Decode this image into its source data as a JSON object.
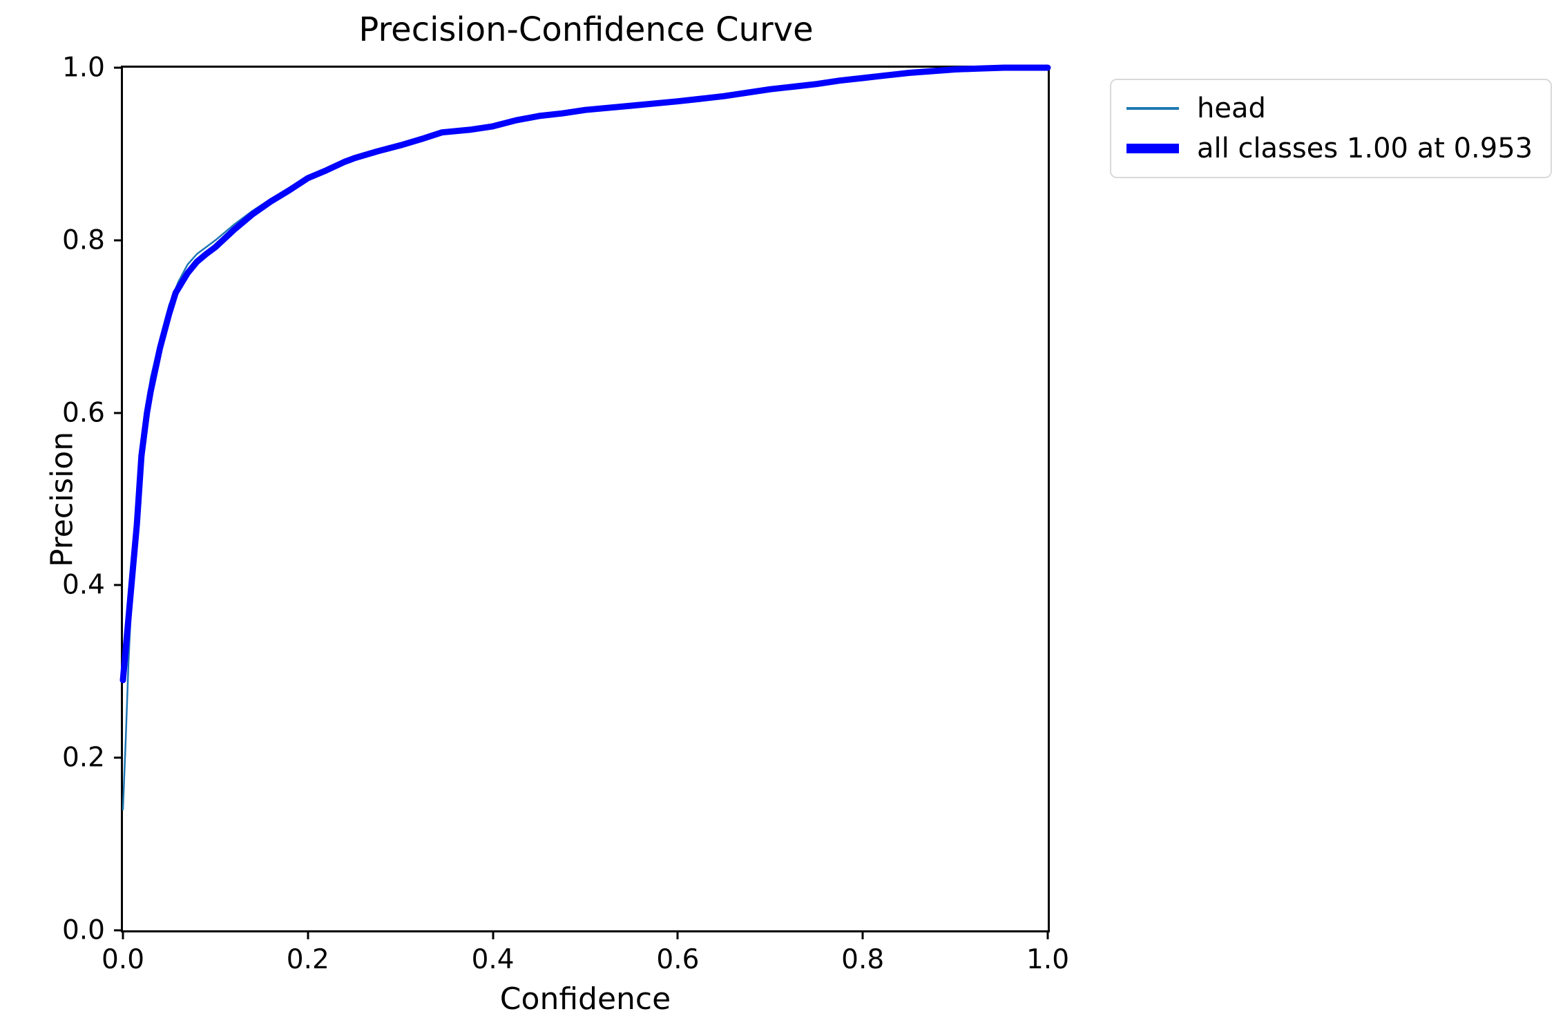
{
  "chart_data": {
    "type": "line",
    "title": "Precision-Confidence Curve",
    "xlabel": "Confidence",
    "ylabel": "Precision",
    "xlim": [
      0,
      1
    ],
    "ylim": [
      0,
      1
    ],
    "grid": false,
    "x_ticks": [
      "0.0",
      "0.2",
      "0.4",
      "0.6",
      "0.8",
      "1.0"
    ],
    "y_ticks": [
      "0.0",
      "0.2",
      "0.4",
      "0.6",
      "0.8",
      "1.0"
    ],
    "legend_position": "outside-upper-right",
    "legend": [
      {
        "label": "head",
        "color": "#1f77b4",
        "style": "thin"
      },
      {
        "label": "all classes 1.00 at 0.953",
        "color": "#0000ff",
        "style": "thick"
      }
    ],
    "series": [
      {
        "name": "head",
        "color": "#1f77b4",
        "width": 2.5,
        "points": [
          [
            0.0,
            0.14
          ],
          [
            0.003,
            0.22
          ],
          [
            0.006,
            0.31
          ],
          [
            0.01,
            0.4
          ],
          [
            0.015,
            0.49
          ],
          [
            0.02,
            0.565
          ],
          [
            0.025,
            0.605
          ],
          [
            0.03,
            0.64
          ],
          [
            0.04,
            0.685
          ],
          [
            0.05,
            0.725
          ],
          [
            0.06,
            0.752
          ],
          [
            0.07,
            0.772
          ],
          [
            0.08,
            0.784
          ],
          [
            0.09,
            0.792
          ],
          [
            0.1,
            0.8
          ],
          [
            0.12,
            0.818
          ],
          [
            0.14,
            0.834
          ],
          [
            0.16,
            0.848
          ],
          [
            0.18,
            0.86
          ],
          [
            0.2,
            0.874
          ],
          [
            0.25,
            0.896
          ],
          [
            0.3,
            0.911
          ],
          [
            0.345,
            0.926
          ],
          [
            0.375,
            0.929
          ],
          [
            0.4,
            0.933
          ],
          [
            0.425,
            0.94
          ],
          [
            0.45,
            0.945
          ],
          [
            0.475,
            0.948
          ],
          [
            0.5,
            0.952
          ],
          [
            0.55,
            0.957
          ],
          [
            0.6,
            0.961
          ],
          [
            0.65,
            0.968
          ],
          [
            0.7,
            0.976
          ],
          [
            0.75,
            0.982
          ],
          [
            0.8,
            0.989
          ],
          [
            0.85,
            0.995
          ],
          [
            0.875,
            0.9965
          ],
          [
            0.9,
            0.998
          ],
          [
            0.915,
            0.9972
          ],
          [
            0.93,
            0.9995
          ],
          [
            0.953,
            1.0
          ],
          [
            1.0,
            1.0
          ]
        ]
      },
      {
        "name": "all classes",
        "color": "#0000ff",
        "width": 9,
        "points": [
          [
            0.0,
            0.29
          ],
          [
            0.005,
            0.35
          ],
          [
            0.01,
            0.41
          ],
          [
            0.015,
            0.47
          ],
          [
            0.02,
            0.55
          ],
          [
            0.026,
            0.6
          ],
          [
            0.03,
            0.625
          ],
          [
            0.04,
            0.675
          ],
          [
            0.05,
            0.715
          ],
          [
            0.057,
            0.739
          ],
          [
            0.07,
            0.762
          ],
          [
            0.08,
            0.775
          ],
          [
            0.09,
            0.784
          ],
          [
            0.1,
            0.792
          ],
          [
            0.12,
            0.812
          ],
          [
            0.14,
            0.83
          ],
          [
            0.16,
            0.845
          ],
          [
            0.18,
            0.858
          ],
          [
            0.2,
            0.872
          ],
          [
            0.22,
            0.881
          ],
          [
            0.24,
            0.891
          ],
          [
            0.25,
            0.895
          ],
          [
            0.275,
            0.903
          ],
          [
            0.3,
            0.91
          ],
          [
            0.325,
            0.918
          ],
          [
            0.345,
            0.925
          ],
          [
            0.375,
            0.928
          ],
          [
            0.4,
            0.932
          ],
          [
            0.425,
            0.939
          ],
          [
            0.45,
            0.944
          ],
          [
            0.475,
            0.947
          ],
          [
            0.5,
            0.951
          ],
          [
            0.55,
            0.956
          ],
          [
            0.6,
            0.961
          ],
          [
            0.625,
            0.964
          ],
          [
            0.65,
            0.967
          ],
          [
            0.675,
            0.971
          ],
          [
            0.7,
            0.975
          ],
          [
            0.725,
            0.978
          ],
          [
            0.75,
            0.981
          ],
          [
            0.775,
            0.985
          ],
          [
            0.8,
            0.988
          ],
          [
            0.825,
            0.991
          ],
          [
            0.85,
            0.994
          ],
          [
            0.875,
            0.996
          ],
          [
            0.9,
            0.998
          ],
          [
            0.925,
            0.999
          ],
          [
            0.953,
            1.0
          ],
          [
            1.0,
            1.0
          ]
        ]
      }
    ]
  }
}
